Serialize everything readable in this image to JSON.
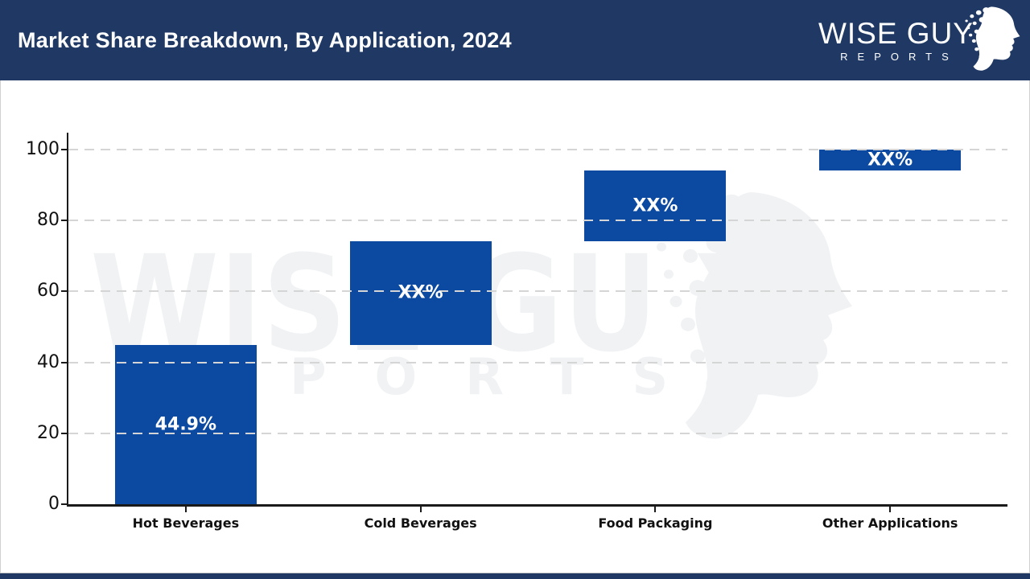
{
  "header": {
    "title": "Market Share Breakdown, By Application, 2024",
    "logo": {
      "wordmark": "WISE GUY",
      "subtext": "REPORTS"
    }
  },
  "watermark": {
    "wordmark": "WISE GU Y",
    "subtext": "REPORTS"
  },
  "chart_data": {
    "type": "bar",
    "subtype": "waterfall",
    "title": "Market Share Breakdown, By Application, 2024",
    "categories": [
      "Hot Beverages",
      "Cold Beverages",
      "Food Packaging",
      "Other Applications"
    ],
    "segments": [
      {
        "category": "Hot Beverages",
        "start": 0,
        "end": 44.9,
        "label": "44.9%"
      },
      {
        "category": "Cold Beverages",
        "start": 44.9,
        "end": 74.2,
        "label": "XX%"
      },
      {
        "category": "Food Packaging",
        "start": 74.2,
        "end": 94.2,
        "label": "XX%"
      },
      {
        "category": "Other Applications",
        "start": 94.2,
        "end": 100,
        "label": "XX%"
      }
    ],
    "xlabel": "",
    "ylabel": "",
    "ylim": [
      0,
      105
    ],
    "yticks": [
      0,
      20,
      40,
      60,
      80,
      100
    ],
    "grid": "horizontal-dashed",
    "legend": "none"
  },
  "colors": {
    "header_bg": "#1f3864",
    "bar": "#0b4aa0",
    "grid": "#d5d5d5",
    "axis": "#1a1a1a",
    "text": "#111111",
    "bar_label": "#ffffff",
    "watermark": "#f0f2f4",
    "border": "#d0d0d0"
  }
}
